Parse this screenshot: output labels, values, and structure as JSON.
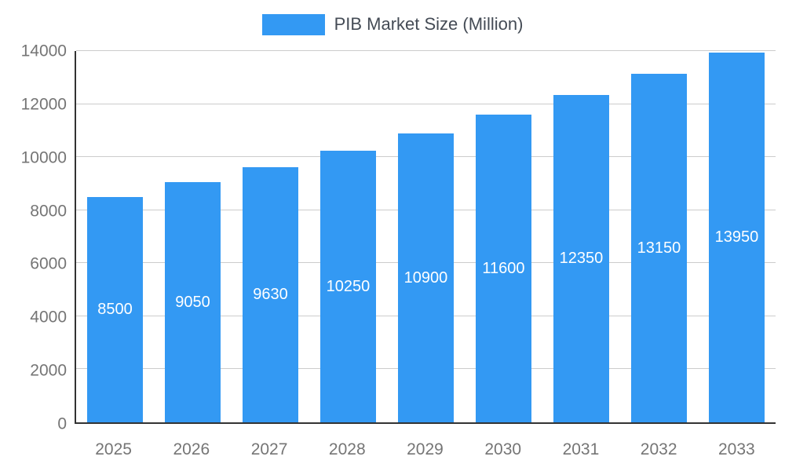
{
  "chart_data": {
    "type": "bar",
    "title": "PIB Market Size (Million)",
    "categories": [
      "2025",
      "2026",
      "2027",
      "2028",
      "2029",
      "2030",
      "2031",
      "2032",
      "2033"
    ],
    "values": [
      8500,
      9050,
      9630,
      10250,
      10900,
      11600,
      12350,
      13150,
      13950
    ],
    "xlabel": "",
    "ylabel": "",
    "ylim": [
      0,
      14000
    ],
    "yticks": [
      0,
      2000,
      4000,
      6000,
      8000,
      10000,
      12000,
      14000
    ],
    "grid": true,
    "legend_position": "top",
    "bar_color": "#3399f3",
    "bar_label_color": "#ffffff",
    "axis_color": "#333333",
    "gridline_color": "#cccccc",
    "tick_label_color": "#757575",
    "legend_text_color": "#444b55"
  }
}
